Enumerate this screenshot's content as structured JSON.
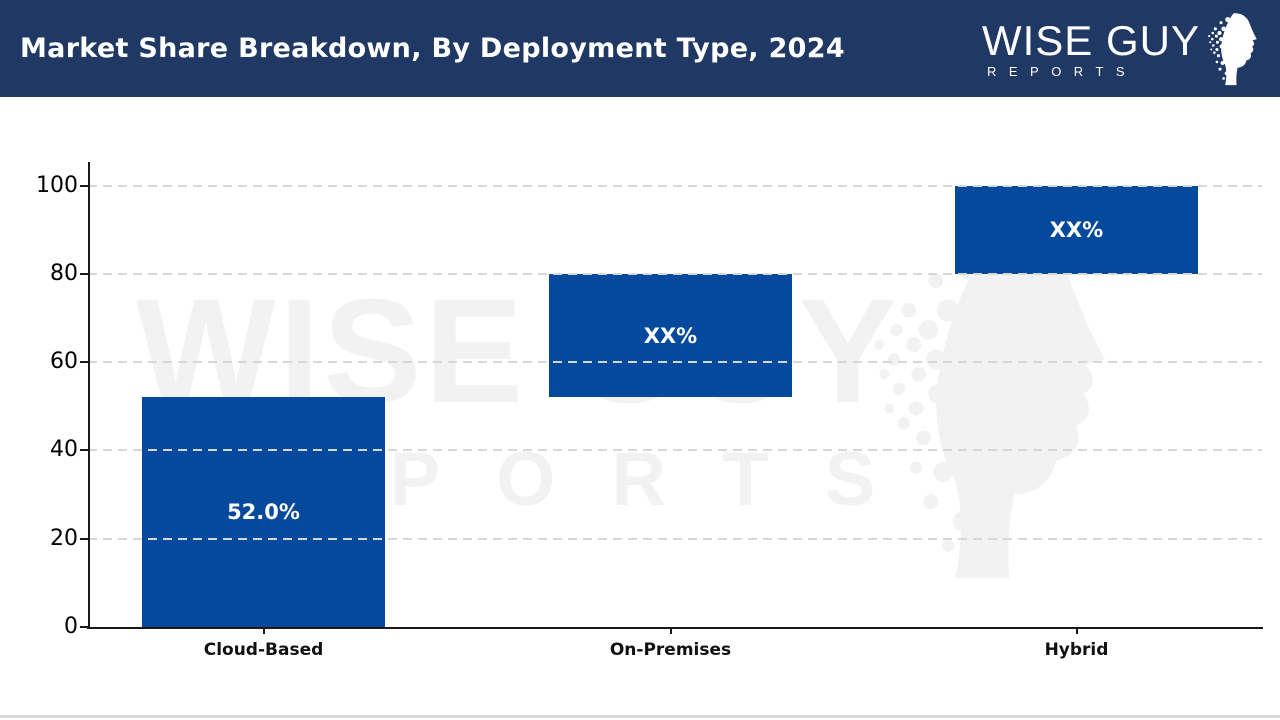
{
  "header": {
    "title": "Market Share Breakdown, By Deployment Type, 2024",
    "background_color": "#1f3864",
    "logo": {
      "line1": "WISE GUY",
      "line2": "REPORTS"
    }
  },
  "watermark": {
    "line1": "WISE GUY",
    "line2": "REPORTS"
  },
  "chart_data": {
    "type": "bar",
    "variant": "floating-waterfall",
    "title": "Market Share Breakdown, By Deployment Type, 2024",
    "categories": [
      "Cloud-Based",
      "On-Premises",
      "Hybrid"
    ],
    "segments": [
      {
        "category": "Cloud-Based",
        "start": 0,
        "end": 52,
        "label": "52.0%"
      },
      {
        "category": "On-Premises",
        "start": 52,
        "end": 80,
        "label": "XX%"
      },
      {
        "category": "Hybrid",
        "start": 80,
        "end": 100,
        "label": "XX%"
      }
    ],
    "xlabel": "",
    "ylabel": "",
    "ylim": [
      0,
      100
    ],
    "yticks": [
      0,
      20,
      40,
      60,
      80,
      100
    ],
    "grid": "horizontal-dashed",
    "legend": "none",
    "bar_color": "#05499c",
    "bar_label_color": "#ffffff",
    "grid_color": "#d7d7d7",
    "axis_color": "#1a1a1a"
  }
}
